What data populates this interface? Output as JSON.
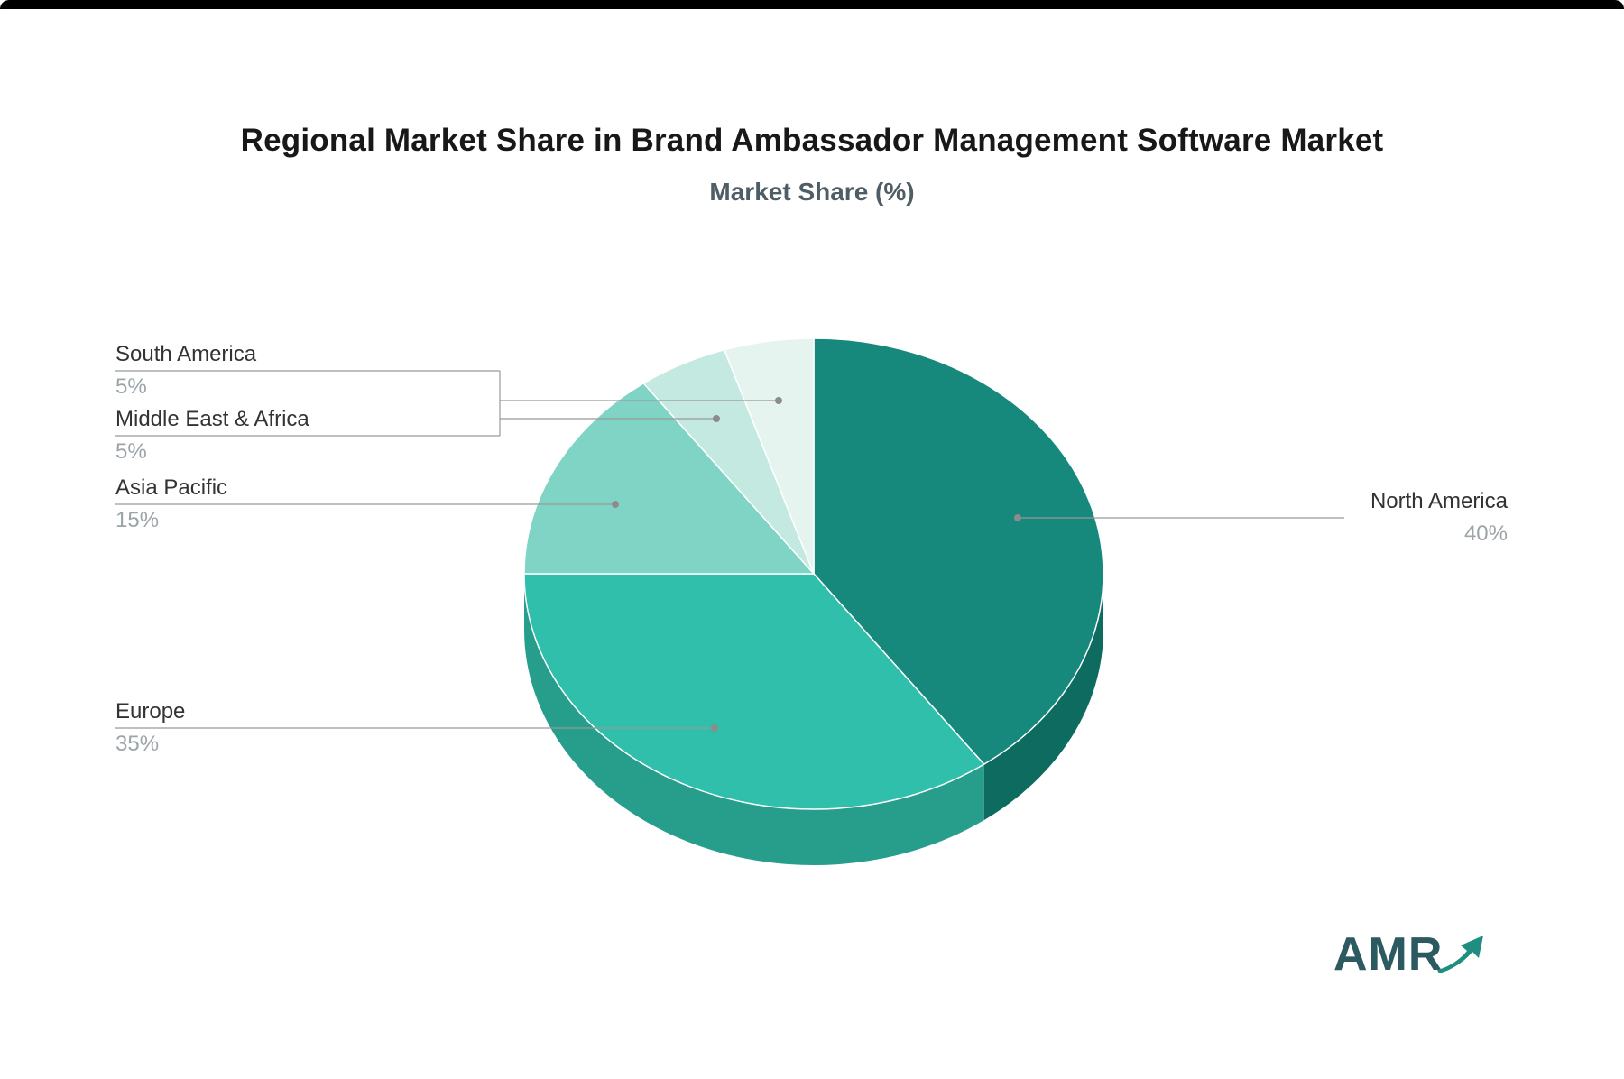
{
  "chart_data": {
    "type": "pie",
    "title": "Regional Market Share in Brand Ambassador Management Software Market",
    "subtitle": "Market Share (%)",
    "unit": "%",
    "style": "3d",
    "start_angle": 0,
    "direction": "clockwise",
    "legend": "none",
    "slices": [
      {
        "label": "North America",
        "value": 40,
        "display_value": "40%",
        "color": "#17897C",
        "side_color": "#0D6B5F",
        "label_side": "right"
      },
      {
        "label": "Europe",
        "value": 35,
        "display_value": "35%",
        "color": "#30BFAA",
        "side_color": "#279E8C",
        "label_side": "left"
      },
      {
        "label": "Asia Pacific",
        "value": 15,
        "display_value": "15%",
        "color": "#7FD4C5",
        "side_color": "#69BFAF",
        "label_side": "left"
      },
      {
        "label": "Middle East & Africa",
        "value": 5,
        "display_value": "5%",
        "color": "#C4E9E0",
        "side_color": "#ABD4C9",
        "label_side": "left"
      },
      {
        "label": "South America",
        "value": 5,
        "display_value": "5%",
        "color": "#E6F4F0",
        "side_color": "#CBDFDA",
        "label_side": "left"
      }
    ]
  },
  "logo": {
    "text": "AMR",
    "text_color": "#2C5A60",
    "arrow_color": "#1F8D7F"
  },
  "style": {
    "connector_color": "#999999",
    "dot_color": "#8C8C8C",
    "label_color": "#333333",
    "value_color": "#9BA4A8",
    "background": "#FFFFFF",
    "topbar_color": "#000000"
  }
}
